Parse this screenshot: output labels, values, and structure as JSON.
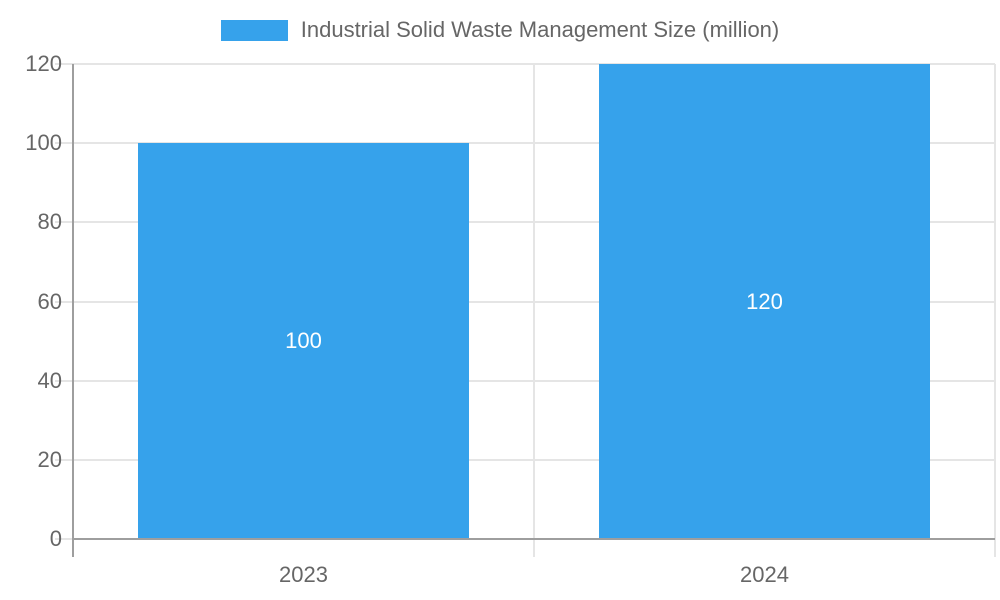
{
  "legend": {
    "label": "Industrial Solid Waste Management Size (million)",
    "swatch_color": "#36A2EB"
  },
  "chart_data": {
    "type": "bar",
    "title": "",
    "xlabel": "",
    "ylabel": "",
    "categories": [
      "2023",
      "2024"
    ],
    "series": [
      {
        "name": "Industrial Solid Waste Management Size (million)",
        "values": [
          100,
          120
        ]
      }
    ],
    "value_labels": [
      "100",
      "120"
    ],
    "yticks": [
      0,
      20,
      40,
      60,
      80,
      100,
      120
    ],
    "ylim": [
      0,
      120
    ],
    "grid": true,
    "legend_position": "top-center"
  },
  "colors": {
    "bar": "#36A2EB",
    "bar_value_label": "#ffffff",
    "axis_text": "#666666",
    "gridline": "#e5e5e5",
    "axis_line": "#9e9e9e",
    "background": "#ffffff"
  }
}
